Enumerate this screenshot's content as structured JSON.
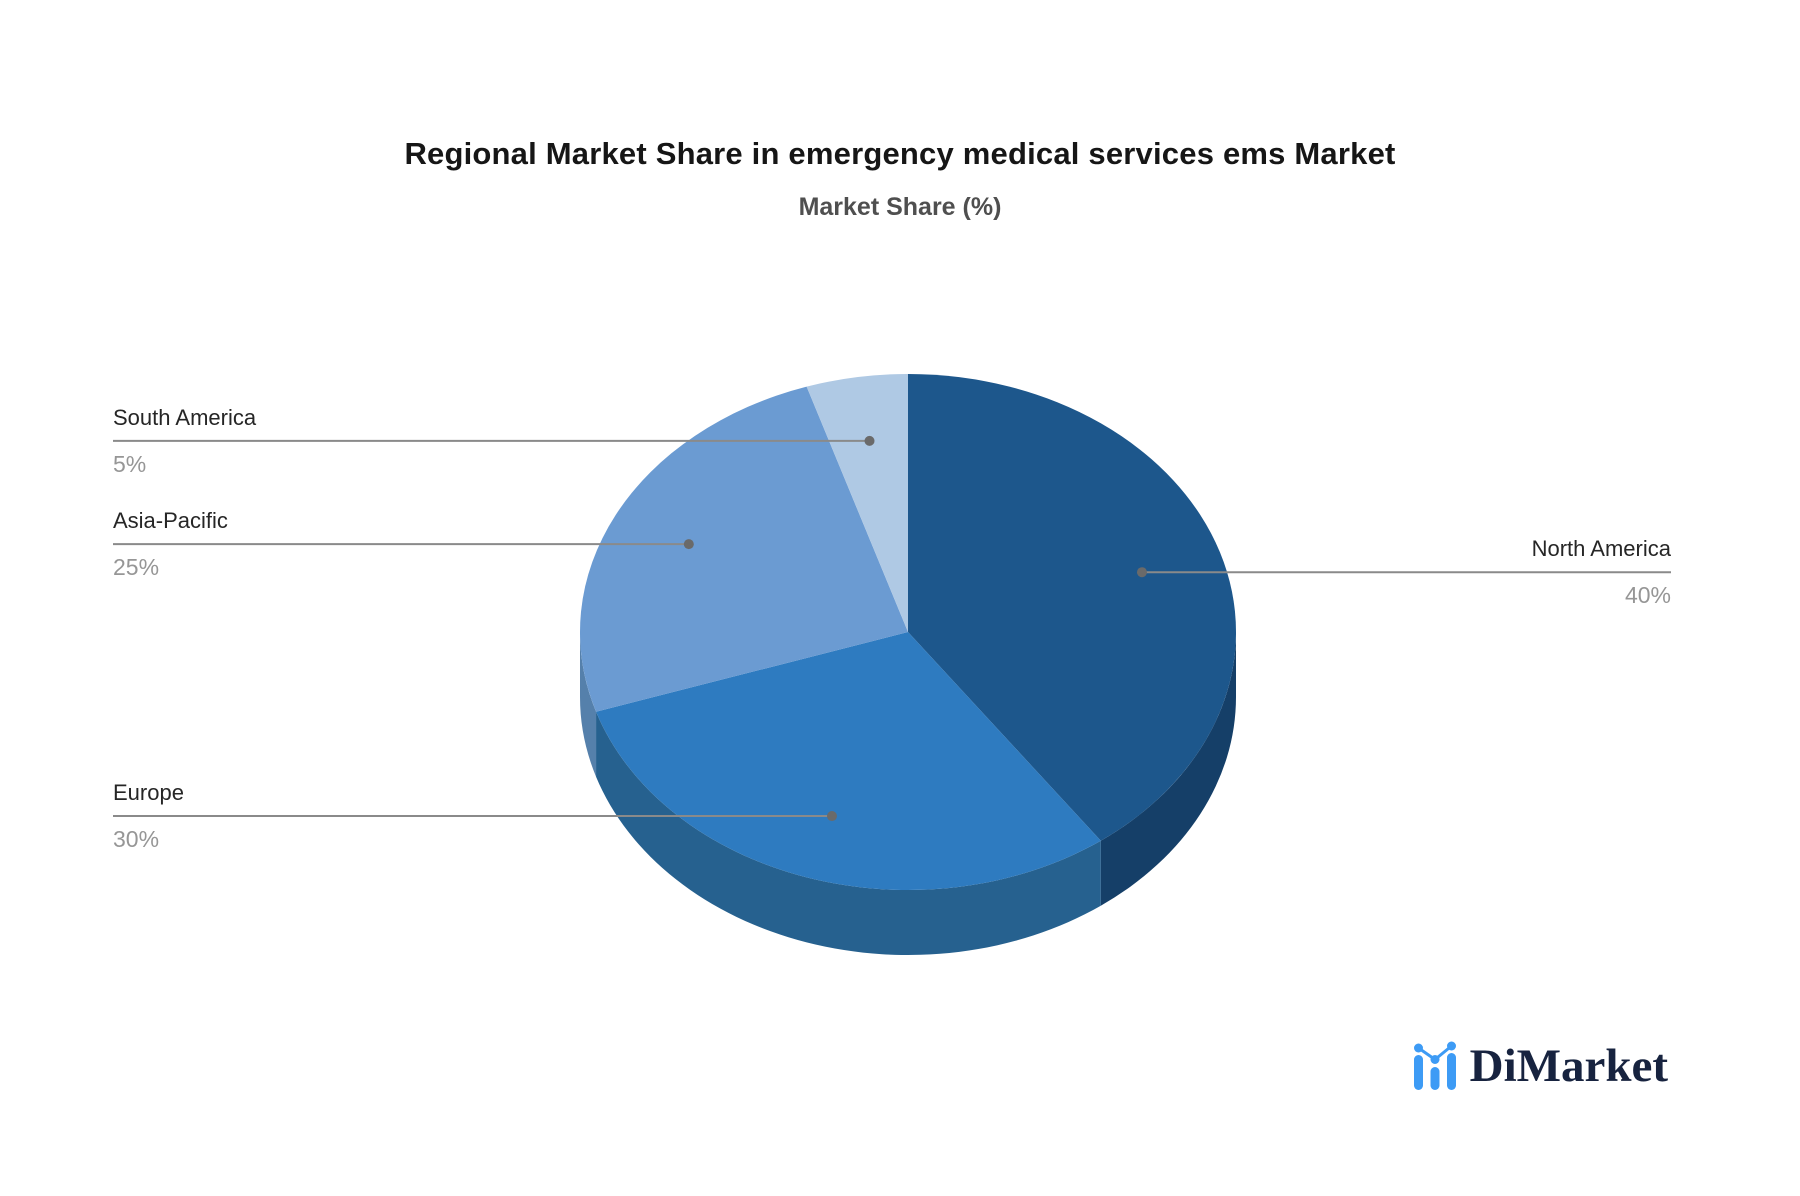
{
  "header": {
    "title": "Regional Market Share in emergency medical services ems Market",
    "subtitle": "Market Share (%)"
  },
  "chart_data": {
    "type": "pie",
    "title": "Regional Market Share in emergency medical services ems Market",
    "subtitle": "Market Share (%)",
    "unit": "%",
    "legend": "none",
    "label_style": "callout",
    "start_angle_deg": 90,
    "direction": "clockwise",
    "pseudo_3d": true,
    "slices": [
      {
        "name": "North America",
        "value": 40,
        "label": "40%",
        "color": "#1d578c",
        "side_color": "#153f68"
      },
      {
        "name": "Europe",
        "value": 30,
        "label": "30%",
        "color": "#2e7bc0",
        "side_color": "#26618f"
      },
      {
        "name": "Asia-Pacific",
        "value": 25,
        "label": "25%",
        "color": "#6b9bd2",
        "side_color": "#5580ab"
      },
      {
        "name": "South America",
        "value": 5,
        "label": "5%",
        "color": "#afc9e4",
        "side_color": "#8ba8c4"
      }
    ]
  },
  "callout_style": {
    "line_color": "#8a8a8a",
    "dot_color": "#6a6a6a",
    "name_color": "#262626",
    "value_color": "#969696"
  },
  "brand": {
    "name": "DiMarket",
    "icon": "bar-trend-logo-icon",
    "icon_color": "#3d9bf5",
    "text_color": "#17233f"
  }
}
